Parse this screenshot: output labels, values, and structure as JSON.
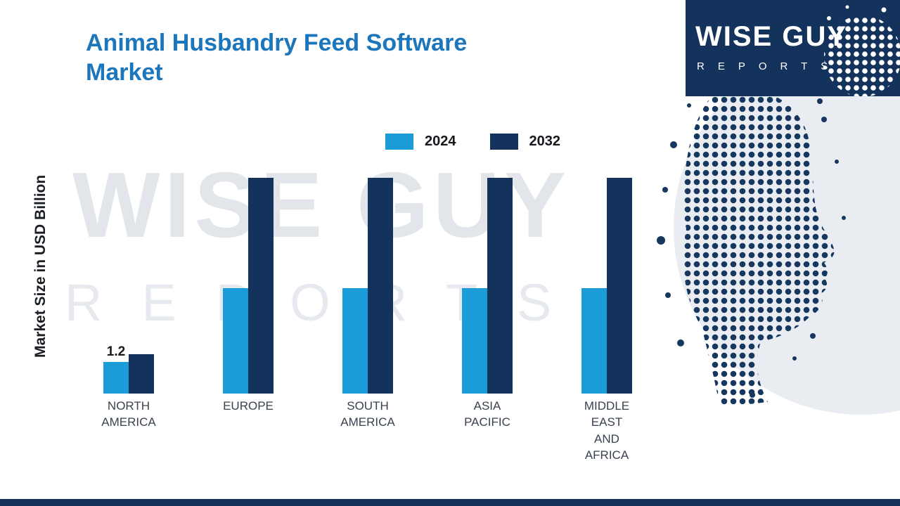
{
  "header": {
    "title": "Animal Husbandry Feed Software\nMarket"
  },
  "logo": {
    "name_line": "WISE GUY",
    "sub_line": "REPORTS"
  },
  "watermark": {
    "line1": "WISE GUY",
    "line2": "REPORTS"
  },
  "colors": {
    "title_blue": "#1b76bc",
    "series_2024_blue": "#1a9cd8",
    "series_2032_navy": "#13335c",
    "footer_navy": "#14325a",
    "watermark_gray": "#e2e6eb",
    "circle_gray": "#e9ecf0"
  },
  "chart_data": {
    "type": "bar",
    "title": "Animal Husbandry Feed Software Market",
    "xlabel": "",
    "ylabel": "Market Size in USD Billion",
    "units": "USD Billion",
    "categories": [
      "NORTH AMERICA",
      "EUROPE",
      "SOUTH AMERICA",
      "ASIA PACIFIC",
      "MIDDLE EAST AND AFRICA"
    ],
    "category_display": [
      "NORTH\nAMERICA",
      "EUROPE",
      "SOUTH\nAMERICA",
      "ASIA\nPACIFIC",
      "MIDDLE\nEAST\nAND\nAFRICA"
    ],
    "series": [
      {
        "name": "2024",
        "color": "#1a9cd8",
        "values": [
          1.2,
          4.0,
          4.0,
          4.0,
          4.0
        ],
        "labels": [
          "1.2",
          "",
          "",
          "",
          ""
        ]
      },
      {
        "name": "2032",
        "color": "#13335c",
        "values": [
          1.5,
          8.2,
          8.2,
          8.2,
          8.2
        ],
        "labels": [
          "",
          "",
          "",
          "",
          ""
        ]
      }
    ],
    "ylim": [
      0,
      8.5
    ],
    "grid": false,
    "legend_position": "top"
  }
}
